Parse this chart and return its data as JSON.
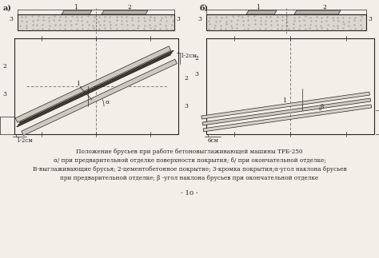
{
  "bg_color": "#f2efe9",
  "ink": "#2a2520",
  "title_line1": "Положение брусьев при работе бетоновыглаживающей машины ТРБ-250",
  "title_line2": "α/ при предварительной отделке поверхности покрытия; б/ при окончательной отделке;",
  "title_line3": "В-выглаживающие брусья; 2-цементобетонное покрытие; 3-кромка покрытия;α-угол наклона брусьев",
  "title_line4": "при предварительной отделке; β -угол наклона брусьев при окончательной отделке",
  "page_num": "- 10 -",
  "label_a": "а)",
  "label_b": "б)"
}
